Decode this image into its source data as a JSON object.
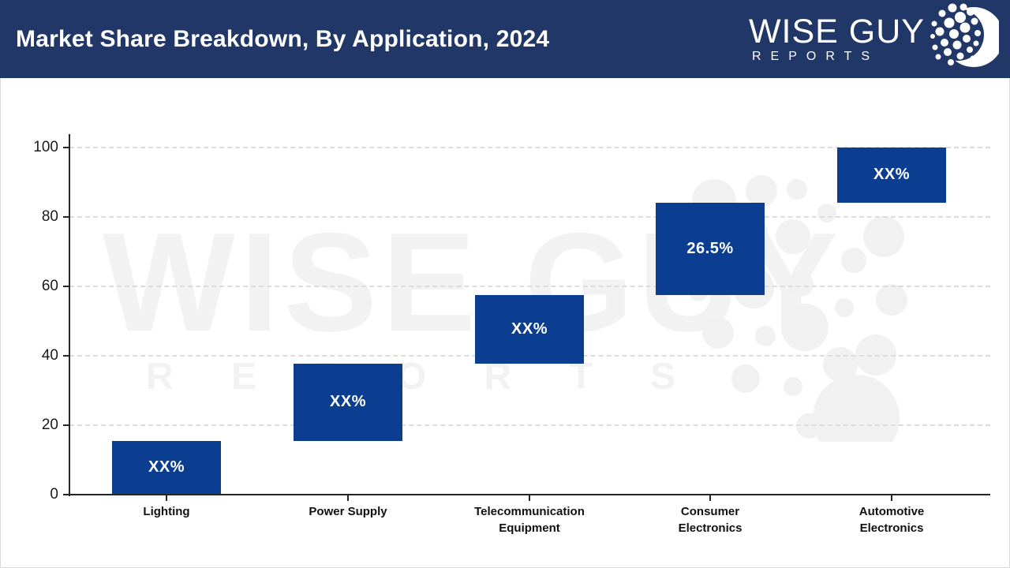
{
  "header": {
    "title": "Market Share Breakdown, By Application, 2024",
    "background_color": "#213767",
    "logo": {
      "line1": "WISE GUY",
      "line2": "REPORTS"
    }
  },
  "watermark": {
    "line1": "WISE GUY",
    "line2": "R E P O R T S"
  },
  "chart_data": {
    "type": "bar",
    "subtype": "waterfall",
    "title": "Market Share Breakdown, By Application, 2024",
    "categories": [
      "Lighting",
      "Power Supply",
      "Telecommunication Equipment",
      "Consumer Electronics",
      "Automotive Electronics"
    ],
    "bars": [
      {
        "category": "Lighting",
        "lines": [
          "Lighting"
        ],
        "label": "XX%",
        "start": 0,
        "end": 15.5
      },
      {
        "category": "Power Supply",
        "lines": [
          "Power Supply"
        ],
        "label": "XX%",
        "start": 15.5,
        "end": 37.8
      },
      {
        "category": "Telecommunication Equipment",
        "lines": [
          "Telecommunication",
          "Equipment"
        ],
        "label": "XX%",
        "start": 37.8,
        "end": 57.6
      },
      {
        "category": "Consumer Electronics",
        "lines": [
          "Consumer",
          "Electronics"
        ],
        "label": "26.5%",
        "start": 57.6,
        "end": 84.1
      },
      {
        "category": "Automotive Electronics",
        "lines": [
          "Automotive",
          "Electronics"
        ],
        "label": "XX%",
        "start": 84.1,
        "end": 100
      }
    ],
    "yticks": [
      0,
      20,
      40,
      60,
      80,
      100
    ],
    "ylim": [
      0,
      100
    ],
    "xlabel": "",
    "ylabel": "",
    "legend": "none",
    "grid": "dashed-horizontal",
    "bar_color": "#0b3d91",
    "bar_label_color": "#ffffff",
    "axis_color": "#262626",
    "gridline_color": "#dcdcdc"
  }
}
